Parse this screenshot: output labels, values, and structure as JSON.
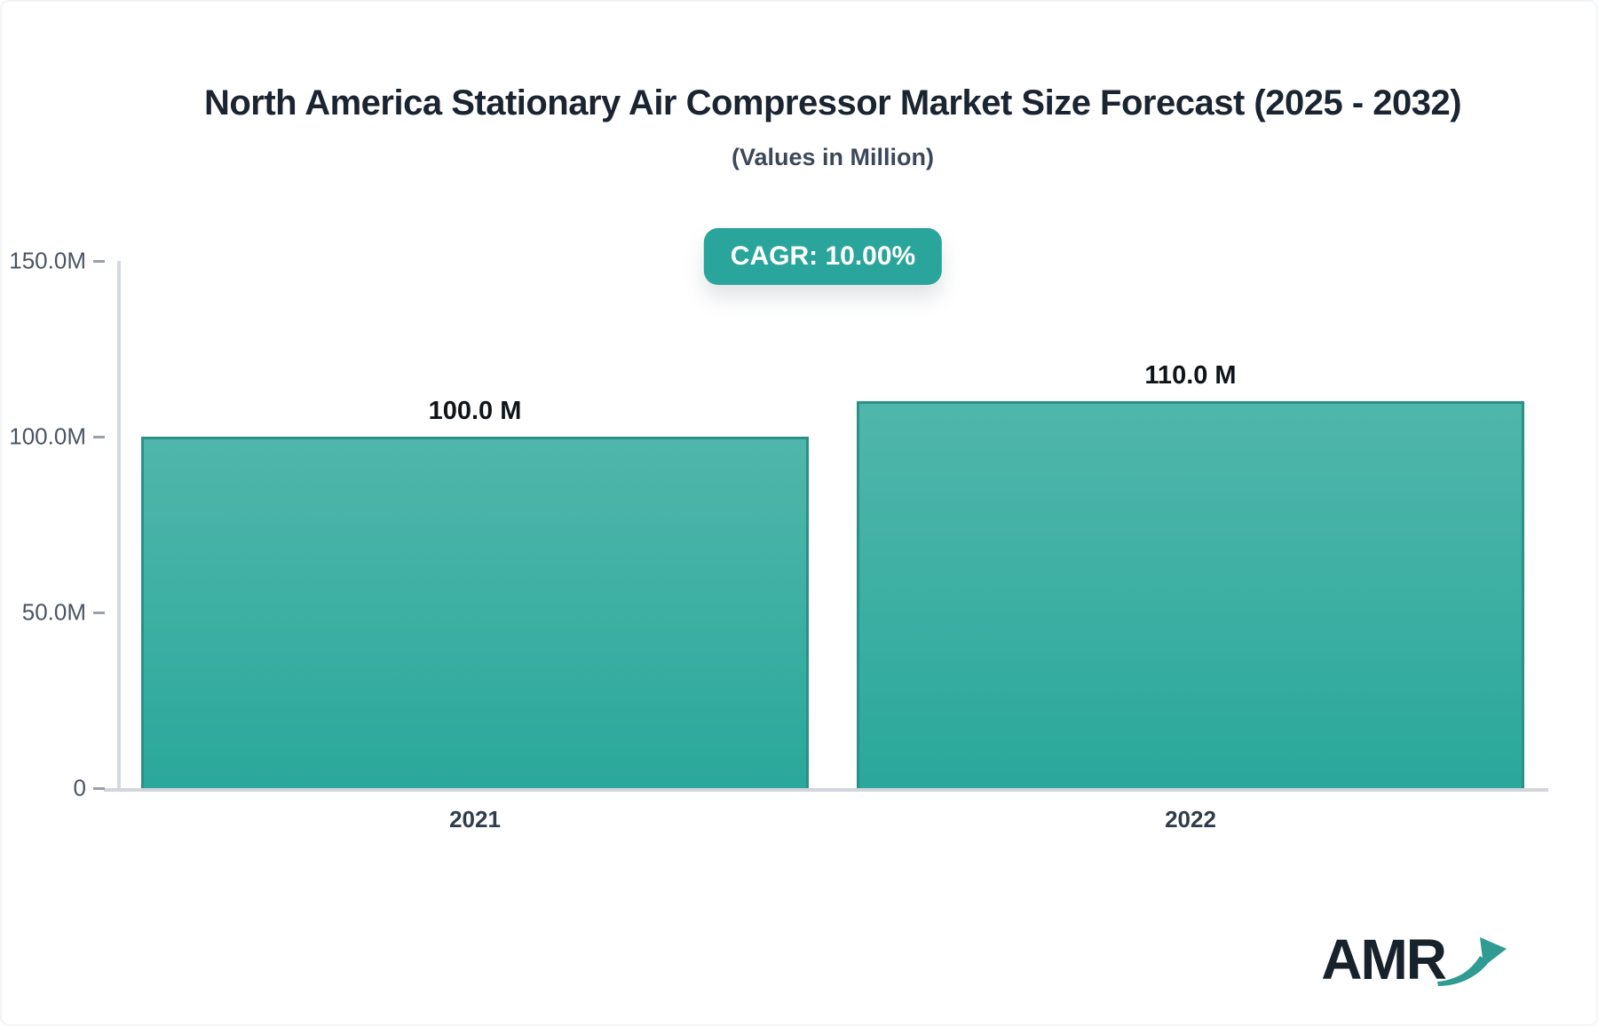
{
  "header": {
    "title": "North America Stationary Air Compressor Market Size Forecast (2025 - 2032)",
    "subtitle": "(Values in Million)"
  },
  "badge": {
    "label": "CAGR: 10.00%"
  },
  "logo": {
    "text": "AMR",
    "arrow_icon": "growth-arrow-icon"
  },
  "colors": {
    "accent_teal": "#2aa59b",
    "bar_gradient_top": "#50b6ab",
    "bar_gradient_bottom": "#2aa89b",
    "bar_border": "#2b9187",
    "axis_line": "#d5d8df",
    "title_text": "#1b2431",
    "subtitle_text": "#3c4859",
    "axis_label_text": "#4b5563",
    "value_label_text": "#0f1419",
    "logo_text": "#18222b",
    "logo_arrow": "#2e9c92"
  },
  "chart_data": {
    "type": "bar",
    "title": "North America Stationary Air Compressor Market Size Forecast (2025 - 2032)",
    "subtitle": "(Values in Million)",
    "cagr_label": "CAGR: 10.00%",
    "categories": [
      "2021",
      "2022"
    ],
    "values": [
      100.0,
      110.0
    ],
    "value_labels": [
      "100.0 M",
      "110.0 M"
    ],
    "ylim": [
      0,
      150
    ],
    "ytick_values": [
      150,
      100,
      50,
      0
    ],
    "ytick_labels": [
      "150.0M",
      "100.0M",
      "50.0M",
      "0"
    ],
    "xlabel": "",
    "ylabel": "",
    "grid": false,
    "legend": false
  }
}
